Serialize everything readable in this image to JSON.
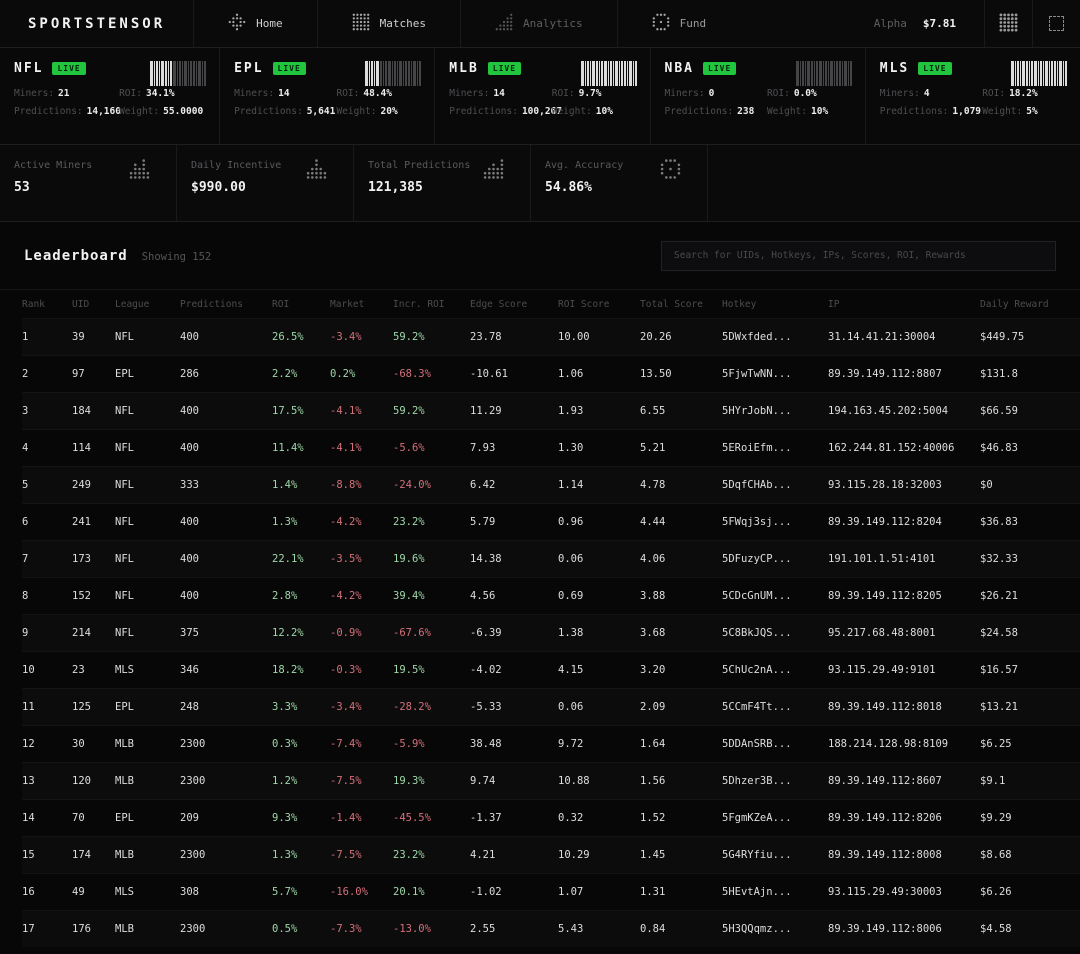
{
  "nav": {
    "brand": "SPORTSTENSOR",
    "items": [
      {
        "label": "Home",
        "icon": "home-icon",
        "muted": false
      },
      {
        "label": "Matches",
        "icon": "matches-icon",
        "muted": false
      },
      {
        "label": "Analytics",
        "icon": "analytics-icon",
        "muted": true
      },
      {
        "label": "Fund",
        "icon": "fund-icon",
        "muted": false
      }
    ],
    "alpha_label": "Alpha",
    "alpha_value": "$7.81"
  },
  "sports": [
    {
      "name": "NFL",
      "live": "LIVE",
      "miners_label": "Miners:",
      "miners": "21",
      "roi_label": "ROI:",
      "roi": "34.1%",
      "predictions_label": "Predictions:",
      "predictions": "14,160",
      "weight_label": "Weight:",
      "weight": "55.0000",
      "barcode_fill": 0.4
    },
    {
      "name": "EPL",
      "live": "LIVE",
      "miners_label": "Miners:",
      "miners": "14",
      "roi_label": "ROI:",
      "roi": "48.4%",
      "predictions_label": "Predictions:",
      "predictions": "5,641",
      "weight_label": "Weight:",
      "weight": "20%",
      "barcode_fill": 0.25
    },
    {
      "name": "MLB",
      "live": "LIVE",
      "miners_label": "Miners:",
      "miners": "14",
      "roi_label": "ROI:",
      "roi": "9.7%",
      "predictions_label": "Predictions:",
      "predictions": "100,267",
      "weight_label": "Weight:",
      "weight": "10%",
      "barcode_fill": 1
    },
    {
      "name": "NBA",
      "live": "LIVE",
      "miners_label": "Miners:",
      "miners": "0",
      "roi_label": "ROI:",
      "roi": "0.0%",
      "predictions_label": "Predictions:",
      "predictions": "238",
      "weight_label": "Weight:",
      "weight": "10%",
      "barcode_fill": 0
    },
    {
      "name": "MLS",
      "live": "LIVE",
      "miners_label": "Miners:",
      "miners": "4",
      "roi_label": "ROI:",
      "roi": "18.2%",
      "predictions_label": "Predictions:",
      "predictions": "1,079",
      "weight_label": "Weight:",
      "weight": "5%",
      "barcode_fill": 1
    }
  ],
  "stats": [
    {
      "label": "Active Miners",
      "value": "53",
      "icon": "miners-chart-icon"
    },
    {
      "label": "Daily Incentive",
      "value": "$990.00",
      "icon": "incentive-chart-icon"
    },
    {
      "label": "Total Predictions",
      "value": "121,385",
      "icon": "predictions-chart-icon"
    },
    {
      "label": "Avg. Accuracy",
      "value": "54.86%",
      "icon": "accuracy-target-icon"
    }
  ],
  "leaderboard": {
    "title": "Leaderboard",
    "showing": "Showing 152",
    "search_placeholder": "Search for UIDs, Hotkeys, IPs, Scores, ROI, Rewards",
    "columns": [
      "Rank",
      "UID",
      "League",
      "Predictions",
      "ROI",
      "Market",
      "Incr. ROI",
      "Edge Score",
      "ROI Score",
      "Total Score",
      "Hotkey",
      "IP",
      "Daily Reward"
    ],
    "rows": [
      [
        "1",
        "39",
        "NFL",
        "400",
        "26.5%",
        "-3.4%",
        "59.2%",
        "23.78",
        "10.00",
        "20.26",
        "5DWxfded...",
        "31.14.41.21:30004",
        "$449.75"
      ],
      [
        "2",
        "97",
        "EPL",
        "286",
        "2.2%",
        "0.2%",
        "-68.3%",
        "-10.61",
        "1.06",
        "13.50",
        "5FjwTwNN...",
        "89.39.149.112:8807",
        "$131.8"
      ],
      [
        "3",
        "184",
        "NFL",
        "400",
        "17.5%",
        "-4.1%",
        "59.2%",
        "11.29",
        "1.93",
        "6.55",
        "5HYrJobN...",
        "194.163.45.202:5004",
        "$66.59"
      ],
      [
        "4",
        "114",
        "NFL",
        "400",
        "11.4%",
        "-4.1%",
        "-5.6%",
        "7.93",
        "1.30",
        "5.21",
        "5ERoiEfm...",
        "162.244.81.152:40006",
        "$46.83"
      ],
      [
        "5",
        "249",
        "NFL",
        "333",
        "1.4%",
        "-8.8%",
        "-24.0%",
        "6.42",
        "1.14",
        "4.78",
        "5DqfCHAb...",
        "93.115.28.18:32003",
        "$0"
      ],
      [
        "6",
        "241",
        "NFL",
        "400",
        "1.3%",
        "-4.2%",
        "23.2%",
        "5.79",
        "0.96",
        "4.44",
        "5FWqj3sj...",
        "89.39.149.112:8204",
        "$36.83"
      ],
      [
        "7",
        "173",
        "NFL",
        "400",
        "22.1%",
        "-3.5%",
        "19.6%",
        "14.38",
        "0.06",
        "4.06",
        "5DFuzyCP...",
        "191.101.1.51:4101",
        "$32.33"
      ],
      [
        "8",
        "152",
        "NFL",
        "400",
        "2.8%",
        "-4.2%",
        "39.4%",
        "4.56",
        "0.69",
        "3.88",
        "5CDcGnUM...",
        "89.39.149.112:8205",
        "$26.21"
      ],
      [
        "9",
        "214",
        "NFL",
        "375",
        "12.2%",
        "-0.9%",
        "-67.6%",
        "-6.39",
        "1.38",
        "3.68",
        "5C8BkJQS...",
        "95.217.68.48:8001",
        "$24.58"
      ],
      [
        "10",
        "23",
        "MLS",
        "346",
        "18.2%",
        "-0.3%",
        "19.5%",
        "-4.02",
        "4.15",
        "3.20",
        "5ChUc2nA...",
        "93.115.29.49:9101",
        "$16.57"
      ],
      [
        "11",
        "125",
        "EPL",
        "248",
        "3.3%",
        "-3.4%",
        "-28.2%",
        "-5.33",
        "0.06",
        "2.09",
        "5CCmF4Tt...",
        "89.39.149.112:8018",
        "$13.21"
      ],
      [
        "12",
        "30",
        "MLB",
        "2300",
        "0.3%",
        "-7.4%",
        "-5.9%",
        "38.48",
        "9.72",
        "1.64",
        "5DDAnSRB...",
        "188.214.128.98:8109",
        "$6.25"
      ],
      [
        "13",
        "120",
        "MLB",
        "2300",
        "1.2%",
        "-7.5%",
        "19.3%",
        "9.74",
        "10.88",
        "1.56",
        "5Dhzer3B...",
        "89.39.149.112:8607",
        "$9.1"
      ],
      [
        "14",
        "70",
        "EPL",
        "209",
        "9.3%",
        "-1.4%",
        "-45.5%",
        "-1.37",
        "0.32",
        "1.52",
        "5FgmKZeA...",
        "89.39.149.112:8206",
        "$9.29"
      ],
      [
        "15",
        "174",
        "MLB",
        "2300",
        "1.3%",
        "-7.5%",
        "23.2%",
        "4.21",
        "10.29",
        "1.45",
        "5G4RYfiu...",
        "89.39.149.112:8008",
        "$8.68"
      ],
      [
        "16",
        "49",
        "MLS",
        "308",
        "5.7%",
        "-16.0%",
        "20.1%",
        "-1.02",
        "1.07",
        "1.31",
        "5HEvtAjn...",
        "93.115.29.49:30003",
        "$6.26"
      ],
      [
        "17",
        "176",
        "MLB",
        "2300",
        "0.5%",
        "-7.3%",
        "-13.0%",
        "2.55",
        "5.43",
        "0.84",
        "5H3QQqmz...",
        "89.39.149.112:8006",
        "$4.58"
      ]
    ]
  },
  "colors": {
    "positive": "#9ed8a8",
    "negative": "#d4707a",
    "live": "#22c53e"
  }
}
